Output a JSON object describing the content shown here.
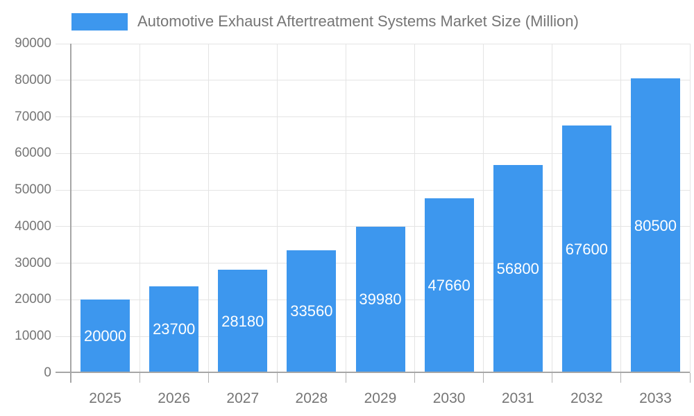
{
  "chart_data": {
    "type": "bar",
    "title": "Automotive Exhaust Aftertreatment Systems Market Size (Million)",
    "categories": [
      "2025",
      "2026",
      "2027",
      "2028",
      "2029",
      "2030",
      "2031",
      "2032",
      "2033"
    ],
    "values": [
      20000,
      23700,
      28180,
      33560,
      39980,
      47660,
      56800,
      67600,
      80500
    ],
    "xlabel": "",
    "ylabel": "",
    "ylim": [
      0,
      90000
    ],
    "ytick_step": 10000,
    "yticks": [
      "0",
      "10000",
      "20000",
      "30000",
      "40000",
      "50000",
      "60000",
      "70000",
      "80000",
      "90000"
    ],
    "grid": true,
    "legend_position": "top-left",
    "bar_labels_inside": true,
    "colors": {
      "bar": "#3D97EE",
      "grid": "#E4E4E4",
      "axis": "#A6A6A6",
      "tick": "#B3B3B3",
      "axis_label": "#757575",
      "title": "#757575",
      "value_label": "#FFFFFF",
      "background": "#FFFFFF"
    }
  }
}
